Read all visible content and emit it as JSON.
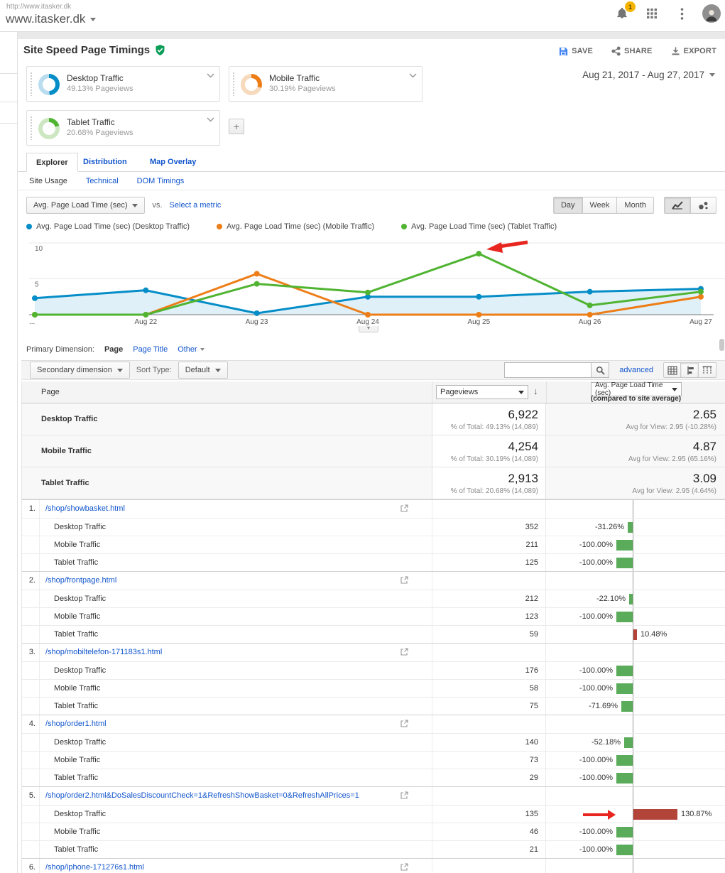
{
  "header": {
    "url": "http://www.itasker.dk",
    "account": "www.itasker.dk",
    "notification_count": "1"
  },
  "toolbar": {
    "title": "Site Speed Page Timings",
    "save_label": "SAVE",
    "share_label": "SHARE",
    "export_label": "EXPORT",
    "date_range": "Aug 21, 2017 - Aug 27, 2017"
  },
  "segments": [
    {
      "name": "Desktop Traffic",
      "detail": "49.13% Pageviews",
      "pct": 49.13,
      "color": "#058dc7",
      "track": "#b9dcef"
    },
    {
      "name": "Mobile Traffic",
      "detail": "30.19% Pageviews",
      "pct": 30.19,
      "color": "#ed7e17",
      "track": "#f7d9bb"
    },
    {
      "name": "Tablet Traffic",
      "detail": "20.68% Pageviews",
      "pct": 20.68,
      "color": "#50b432",
      "track": "#cde7c2"
    }
  ],
  "add_segment_label": "+",
  "tabs": {
    "main": [
      "Explorer",
      "Distribution",
      "Map Overlay"
    ],
    "sub": [
      "Site Usage",
      "Technical",
      "DOM Timings"
    ]
  },
  "metric_bar": {
    "metric": "Avg. Page Load Time (sec)",
    "vs": "vs.",
    "select_metric": "Select a metric",
    "granularity": [
      "Day",
      "Week",
      "Month"
    ]
  },
  "legend": [
    "Avg. Page Load Time (sec) (Desktop Traffic)",
    "Avg. Page Load Time (sec) (Mobile Traffic)",
    "Avg. Page Load Time (sec) (Tablet Traffic)"
  ],
  "chart_data": {
    "type": "line",
    "x_ticks": [
      "...",
      "Aug 22",
      "Aug 23",
      "Aug 24",
      "Aug 25",
      "Aug 26",
      "Aug 27"
    ],
    "ylim": [
      0,
      10
    ],
    "yticks": [
      5,
      10
    ],
    "grid": true,
    "legend_position": "top",
    "series": [
      {
        "name": "Avg. Page Load Time (sec) (Desktop Traffic)",
        "color": "#058dc7",
        "area": true,
        "values": [
          2.3,
          3.4,
          0.2,
          2.5,
          2.5,
          3.2,
          3.6
        ]
      },
      {
        "name": "Avg. Page Load Time (sec) (Mobile Traffic)",
        "color": "#ed7e17",
        "area": false,
        "values": [
          0,
          0,
          5.7,
          0,
          0,
          0,
          2.5
        ]
      },
      {
        "name": "Avg. Page Load Time (sec) (Tablet Traffic)",
        "color": "#50b432",
        "area": false,
        "values": [
          0,
          0,
          4.3,
          3.1,
          8.5,
          1.3,
          3.2
        ]
      }
    ],
    "annotation": {
      "red_arrow_series": "Tablet Traffic",
      "red_arrow_x": "Aug 25"
    }
  },
  "dimension_bar": {
    "label": "Primary Dimension:",
    "selected": "Page",
    "options": [
      "Page",
      "Page Title",
      "Other"
    ]
  },
  "table_controls": {
    "secondary_dimension": "Secondary dimension",
    "sort_type_label": "Sort Type:",
    "sort_type": "Default",
    "advanced": "advanced",
    "search_value": ""
  },
  "table": {
    "columns": {
      "page": "Page",
      "pageviews": "Pageviews",
      "metric": "Avg. Page Load Time (sec)",
      "metric_note": "(compared to site average)"
    },
    "summary": [
      {
        "name": "Desktop Traffic",
        "pageviews": "6,922",
        "pageviews_sub": "% of Total: 49.13% (14,089)",
        "metric": "2.65",
        "metric_sub": "Avg for View: 2.95 (-10.28%)"
      },
      {
        "name": "Mobile Traffic",
        "pageviews": "4,254",
        "pageviews_sub": "% of Total: 30.19% (14,089)",
        "metric": "4.87",
        "metric_sub": "Avg for View: 2.95 (65.16%)"
      },
      {
        "name": "Tablet Traffic",
        "pageviews": "2,913",
        "pageviews_sub": "% of Total: 20.68% (14,089)",
        "metric": "3.09",
        "metric_sub": "Avg for View: 2.95 (4.64%)"
      }
    ],
    "rows": [
      {
        "index": "1.",
        "url": "/shop/showbasket.html",
        "subs": [
          {
            "name": "Desktop Traffic",
            "pageviews": "352",
            "change": "-31.26%",
            "change_value": -31.26,
            "arrow": false
          },
          {
            "name": "Mobile Traffic",
            "pageviews": "211",
            "change": "-100.00%",
            "change_value": -100.0,
            "arrow": false
          },
          {
            "name": "Tablet Traffic",
            "pageviews": "125",
            "change": "-100.00%",
            "change_value": -100.0,
            "arrow": false
          }
        ]
      },
      {
        "index": "2.",
        "url": "/shop/frontpage.html",
        "subs": [
          {
            "name": "Desktop Traffic",
            "pageviews": "212",
            "change": "-22.10%",
            "change_value": -22.1,
            "arrow": false
          },
          {
            "name": "Mobile Traffic",
            "pageviews": "123",
            "change": "-100.00%",
            "change_value": -100.0,
            "arrow": false
          },
          {
            "name": "Tablet Traffic",
            "pageviews": "59",
            "change": "10.48%",
            "change_value": 10.48,
            "arrow": false
          }
        ]
      },
      {
        "index": "3.",
        "url": "/shop/mobiltelefon-171183s1.html",
        "subs": [
          {
            "name": "Desktop Traffic",
            "pageviews": "176",
            "change": "-100.00%",
            "change_value": -100.0,
            "arrow": false
          },
          {
            "name": "Mobile Traffic",
            "pageviews": "58",
            "change": "-100.00%",
            "change_value": -100.0,
            "arrow": false
          },
          {
            "name": "Tablet Traffic",
            "pageviews": "75",
            "change": "-71.69%",
            "change_value": -71.69,
            "arrow": false
          }
        ]
      },
      {
        "index": "4.",
        "url": "/shop/order1.html",
        "subs": [
          {
            "name": "Desktop Traffic",
            "pageviews": "140",
            "change": "-52.18%",
            "change_value": -52.18,
            "arrow": false
          },
          {
            "name": "Mobile Traffic",
            "pageviews": "73",
            "change": "-100.00%",
            "change_value": -100.0,
            "arrow": false
          },
          {
            "name": "Tablet Traffic",
            "pageviews": "29",
            "change": "-100.00%",
            "change_value": -100.0,
            "arrow": false
          }
        ]
      },
      {
        "index": "5.",
        "url": "/shop/order2.html&DoSalesDiscountCheck=1&RefreshShowBasket=0&RefreshAllPrices=1",
        "subs": [
          {
            "name": "Desktop Traffic",
            "pageviews": "135",
            "change": "130.87%",
            "change_value": 130.87,
            "arrow": true
          },
          {
            "name": "Mobile Traffic",
            "pageviews": "46",
            "change": "-100.00%",
            "change_value": -100.0,
            "arrow": false
          },
          {
            "name": "Tablet Traffic",
            "pageviews": "21",
            "change": "-100.00%",
            "change_value": -100.0,
            "arrow": false
          }
        ]
      },
      {
        "index": "6.",
        "url": "/shop/iphone-171276s1.html",
        "subs": []
      }
    ]
  },
  "colors": {
    "positive_bar": "#b2443a",
    "negative_bar": "#5aab5a",
    "axis_line": "#9a9a9a",
    "annotation_red": "#e8261f"
  }
}
